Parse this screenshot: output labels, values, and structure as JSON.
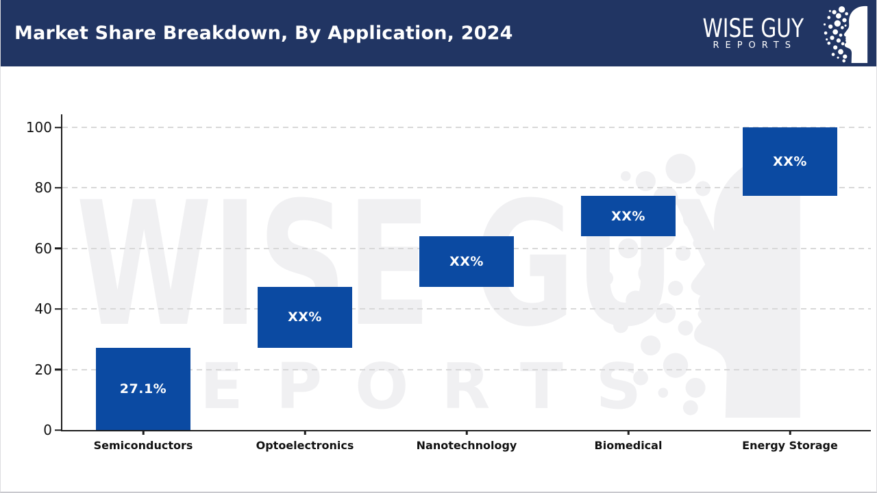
{
  "header": {
    "title": "Market Share Breakdown, By Application, 2024",
    "logo": {
      "line1": "WISE GUY",
      "line2": "REPORTS",
      "head_icon": "dotted-face-profile"
    }
  },
  "watermark": {
    "line1": "WISE GUY",
    "line2": "REPORTS",
    "head_icon": "dotted-face-profile"
  },
  "colors": {
    "header_bg": "#213563",
    "header_text": "#ffffff",
    "bar": "#0b4aa2",
    "bar_label": "#ffffff",
    "gridline": "#d8d8d8",
    "axis": "#1c1c1c",
    "tick_text": "#111111",
    "watermark": "#f0f0f2",
    "background": "#ffffff"
  },
  "chart_data": {
    "type": "bar",
    "subtype": "floating-waterfall",
    "title": "Market Share Breakdown, By Application, 2024",
    "xlabel": "",
    "ylabel": "",
    "categories": [
      "Semiconductors",
      "Optoelectronics",
      "Nanotechnology",
      "Biomedical",
      "Energy Storage"
    ],
    "segments": [
      {
        "category": "Semiconductors",
        "start": 0,
        "end": 27.1,
        "label": "27.1%"
      },
      {
        "category": "Optoelectronics",
        "start": 27.1,
        "end": 47.4,
        "label": "XX%"
      },
      {
        "category": "Nanotechnology",
        "start": 47.4,
        "end": 64.0,
        "label": "XX%"
      },
      {
        "category": "Biomedical",
        "start": 64.0,
        "end": 77.3,
        "label": "XX%"
      },
      {
        "category": "Energy Storage",
        "start": 77.3,
        "end": 100.0,
        "label": "XX%"
      }
    ],
    "yticks": [
      0,
      20,
      40,
      60,
      80,
      100
    ],
    "ylim": [
      0,
      104.3
    ],
    "grid": "horizontal-dashed",
    "legend": "none",
    "bar_color": "#0b4aa2",
    "bar_label_color": "#ffffff"
  }
}
